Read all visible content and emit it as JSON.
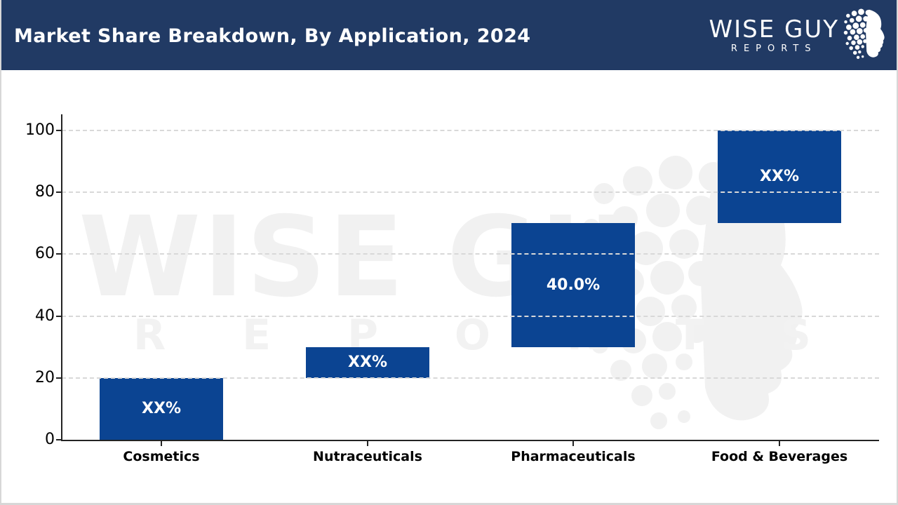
{
  "header": {
    "title": "Market Share Breakdown, By Application, 2024",
    "logo": {
      "line1": "WISE GUY",
      "line2": "REPORTS"
    }
  },
  "watermark": {
    "line1": "WISE GU",
    "line2": "R E P O R T S"
  },
  "colors": {
    "header_bg": "#213a64",
    "bar": "#0b4492",
    "bar_label": "#ffffff",
    "gridline": "#d8d8d8",
    "axis": "#232323",
    "watermark": "#f1f1f1",
    "page_border": "#d7d7d7"
  },
  "chart_data": {
    "type": "bar",
    "subtype": "waterfall",
    "title": "Market Share Breakdown, By Application, 2024",
    "categories": [
      "Cosmetics",
      "Nutraceuticals",
      "Pharmaceuticals",
      "Food & Beverages"
    ],
    "segments": [
      {
        "category": "Cosmetics",
        "start": 0,
        "end": 20,
        "label": "XX%"
      },
      {
        "category": "Nutraceuticals",
        "start": 20,
        "end": 30,
        "label": "XX%"
      },
      {
        "category": "Pharmaceuticals",
        "start": 30,
        "end": 70,
        "label": "40.0%"
      },
      {
        "category": "Food & Beverages",
        "start": 70,
        "end": 100,
        "label": "XX%"
      }
    ],
    "yticks": [
      0,
      20,
      40,
      60,
      80,
      100
    ],
    "ylim": [
      0,
      104
    ],
    "xlabel": "",
    "ylabel": "",
    "grid": true,
    "grid_style": "dashed",
    "grid_above_bars": true,
    "legend": null
  }
}
